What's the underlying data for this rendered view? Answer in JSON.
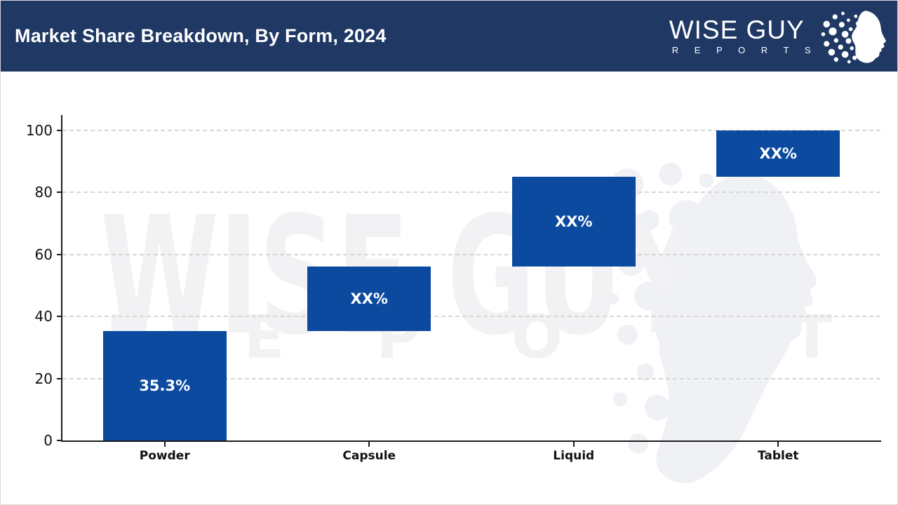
{
  "header": {
    "title": "Market Share Breakdown, By Form, 2024",
    "bg_color": "#1f3864",
    "logo": {
      "line1": "WISE GUY",
      "line2": "R E P O R T S"
    }
  },
  "watermark": {
    "line1": "WISE GUY",
    "line2": "R E P O R T S"
  },
  "chart_data": {
    "type": "bar",
    "subtype": "waterfall",
    "title": "Market Share Breakdown, By Form, 2024",
    "categories": [
      "Powder",
      "Capsule",
      "Liquid",
      "Tablet"
    ],
    "segments": [
      {
        "category": "Powder",
        "start": 0,
        "end": 35.3,
        "label": "35.3%"
      },
      {
        "category": "Capsule",
        "start": 35.3,
        "end": 56.2,
        "label": "XX%"
      },
      {
        "category": "Liquid",
        "start": 56.2,
        "end": 85.1,
        "label": "XX%"
      },
      {
        "category": "Tablet",
        "start": 85.1,
        "end": 100,
        "label": "XX%"
      }
    ],
    "yticks": [
      0,
      20,
      40,
      60,
      80,
      100
    ],
    "ylim": [
      0,
      105
    ],
    "xlabel": "",
    "ylabel": "",
    "bar_color": "#0b4a9f",
    "bar_label_color": "#ffffff",
    "grid": "horizontal-dashed",
    "legend_position": "none"
  }
}
